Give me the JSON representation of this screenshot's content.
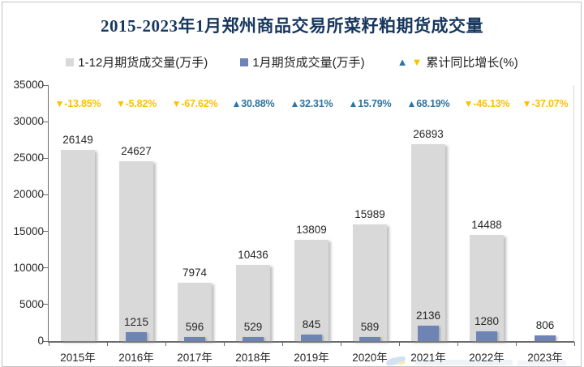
{
  "title": "2015-2023年1月郑州商品交易所菜籽粕期货成交量",
  "legend": {
    "items": [
      {
        "label": "1-12月期货成交量(万手)",
        "swatch_color": "#d9d9d9"
      },
      {
        "label": "1月期货成交量(万手)",
        "swatch_color": "#6d84b4"
      },
      {
        "label": "累计同比增长(%)",
        "up_color": "#2e74a4",
        "down_color": "#ffc000"
      }
    ]
  },
  "icons": {
    "up_triangle": "▲",
    "down_triangle": "▼"
  },
  "colors": {
    "annual_bar": "#d9d9d9",
    "january_bar": "#6d84b4",
    "growth_up": "#2e74a4",
    "growth_down": "#ffc000",
    "title_text": "#17375e",
    "axis_text": "#262626"
  },
  "chart_data": {
    "type": "bar",
    "categories": [
      "2015年",
      "2016年",
      "2017年",
      "2018年",
      "2019年",
      "2020年",
      "2021年",
      "2022年",
      "2023年"
    ],
    "series": [
      {
        "name": "1-12月期货成交量(万手)",
        "color": "#d9d9d9",
        "values": [
          26149,
          24627,
          7974,
          10436,
          13809,
          15989,
          26893,
          14488,
          null
        ]
      },
      {
        "name": "1月期货成交量(万手)",
        "color": "#6d84b4",
        "values": [
          null,
          1215,
          596,
          529,
          845,
          589,
          2136,
          1280,
          806
        ]
      },
      {
        "name": "累计同比增长(%)",
        "type": "annotation",
        "values": [
          -13.85,
          -5.82,
          -67.62,
          30.88,
          32.31,
          15.79,
          68.19,
          -46.13,
          -37.07
        ],
        "labels": [
          "-13.85%",
          "-5.82%",
          "-67.62%",
          "30.88%",
          "32.31%",
          "15.79%",
          "68.19%",
          "-46.13%",
          "-37.07%"
        ],
        "directions": [
          "down",
          "down",
          "down",
          "up",
          "up",
          "up",
          "up",
          "down",
          "down"
        ]
      }
    ],
    "xlabel": "",
    "ylabel": "",
    "ylim": [
      0,
      35000
    ],
    "yticks": [
      0,
      5000,
      10000,
      15000,
      20000,
      25000,
      30000,
      35000
    ],
    "grid": false,
    "legend_position": "top"
  }
}
